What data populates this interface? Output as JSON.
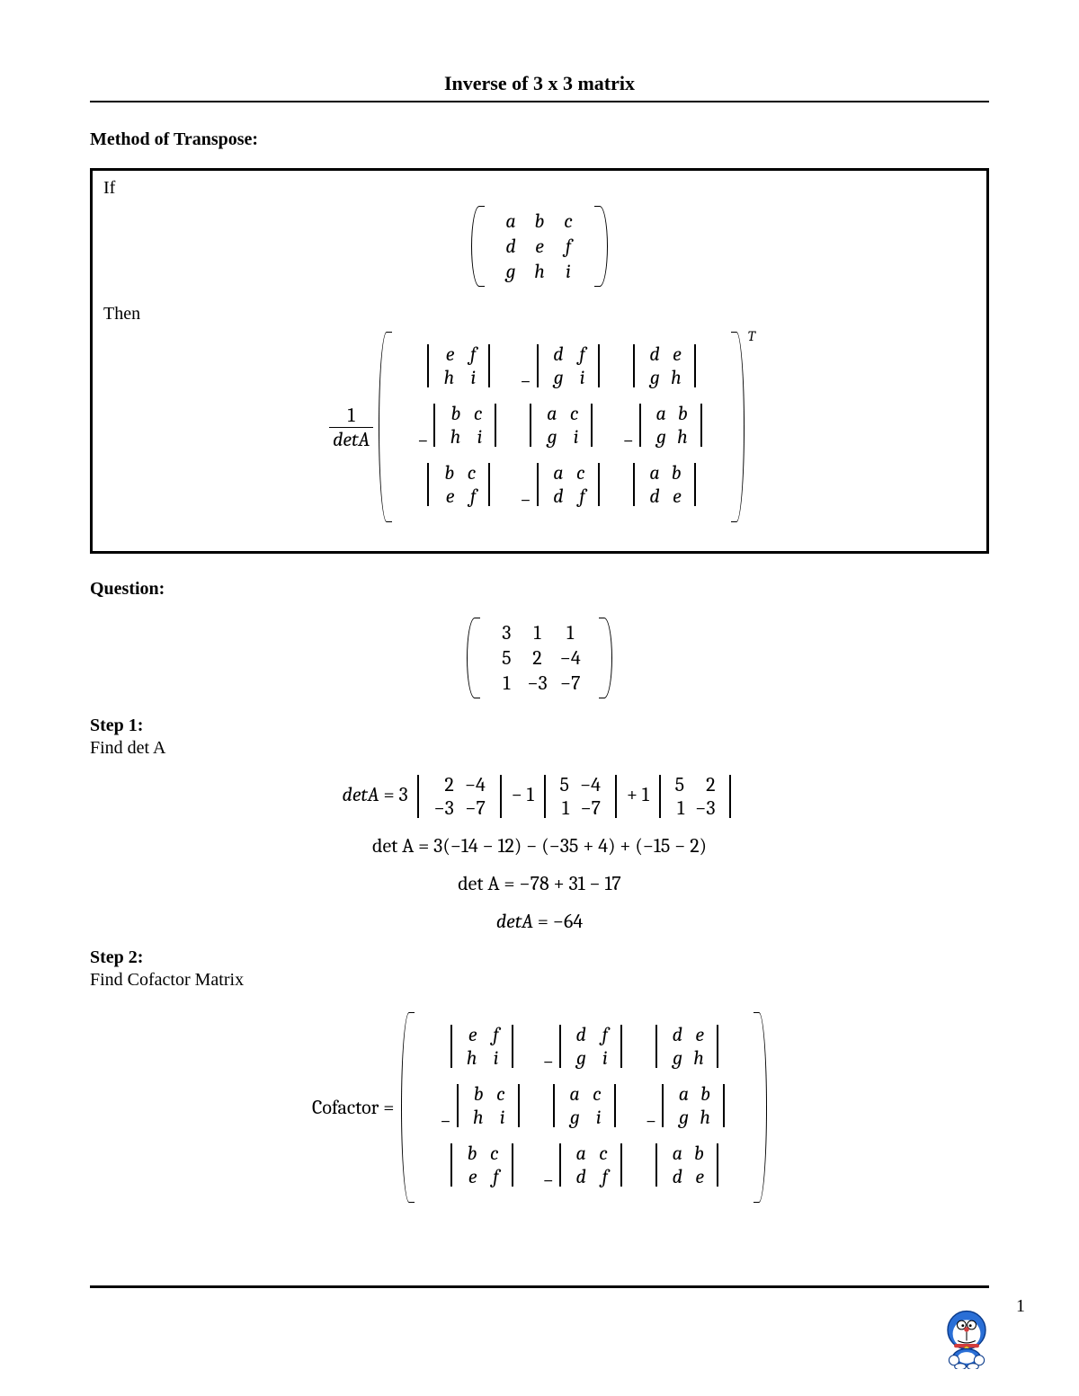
{
  "title": "Inverse of 3 x 3 matrix",
  "method_heading": "Method of Transpose:",
  "if_label": "If",
  "then_label": "Then",
  "symbolic_matrix": [
    [
      "a",
      "b",
      "c"
    ],
    [
      "d",
      "e",
      "f"
    ],
    [
      "g",
      "h",
      "i"
    ]
  ],
  "fraction_num": "1",
  "fraction_den": "detA",
  "cofactor_grid_symbolic": [
    [
      {
        "sign": "",
        "m": [
          [
            "e",
            "f"
          ],
          [
            "h",
            "i"
          ]
        ]
      },
      {
        "sign": "−",
        "m": [
          [
            "d",
            "f"
          ],
          [
            "g",
            "i"
          ]
        ]
      },
      {
        "sign": "",
        "m": [
          [
            "d",
            "e"
          ],
          [
            "g",
            "h"
          ]
        ]
      }
    ],
    [
      {
        "sign": "−",
        "m": [
          [
            "b",
            "c"
          ],
          [
            "h",
            "i"
          ]
        ]
      },
      {
        "sign": "",
        "m": [
          [
            "a",
            "c"
          ],
          [
            "g",
            "i"
          ]
        ]
      },
      {
        "sign": "−",
        "m": [
          [
            "a",
            "b"
          ],
          [
            "g",
            "h"
          ]
        ]
      }
    ],
    [
      {
        "sign": "",
        "m": [
          [
            "b",
            "c"
          ],
          [
            "e",
            "f"
          ]
        ]
      },
      {
        "sign": "−",
        "m": [
          [
            "a",
            "c"
          ],
          [
            "d",
            "f"
          ]
        ]
      },
      {
        "sign": "",
        "m": [
          [
            "a",
            "b"
          ],
          [
            "d",
            "e"
          ]
        ]
      }
    ]
  ],
  "transpose_symbol": "T",
  "question_heading": "Question:",
  "question_matrix": [
    [
      "3",
      "1",
      "1"
    ],
    [
      "5",
      "2",
      "−4"
    ],
    [
      "1",
      "−3",
      "−7"
    ]
  ],
  "step1_label": "Step 1:",
  "step1_text": "Find det A",
  "detA_expansion": {
    "lhs": "detA",
    "terms": [
      {
        "coef": "3",
        "m": [
          [
            "2",
            "−4"
          ],
          [
            "−3",
            "−7"
          ]
        ],
        "after": "− 1"
      },
      {
        "coef": "",
        "m": [
          [
            "5",
            "−4"
          ],
          [
            "1",
            "−7"
          ]
        ],
        "after": "+ 1"
      },
      {
        "coef": "",
        "m": [
          [
            "5",
            "2"
          ],
          [
            "1",
            "−3"
          ]
        ],
        "after": ""
      }
    ]
  },
  "det_line2": "det A = 3(−14 − 12) − (−35 + 4) + (−15 − 2)",
  "det_line3": "det A = −78 + 31 − 17",
  "det_line4_lhs": "detA",
  "det_line4_rhs": "= −64",
  "step2_label": "Step 2:",
  "step2_text": "Find Cofactor Matrix",
  "cofactor_label": "Cofactor =",
  "page_number": "1",
  "colors": {
    "text": "#000000",
    "background": "#ffffff",
    "icon_blue": "#2a6fd6",
    "icon_red": "#d23c3c",
    "icon_yellow": "#f3cf3a"
  }
}
